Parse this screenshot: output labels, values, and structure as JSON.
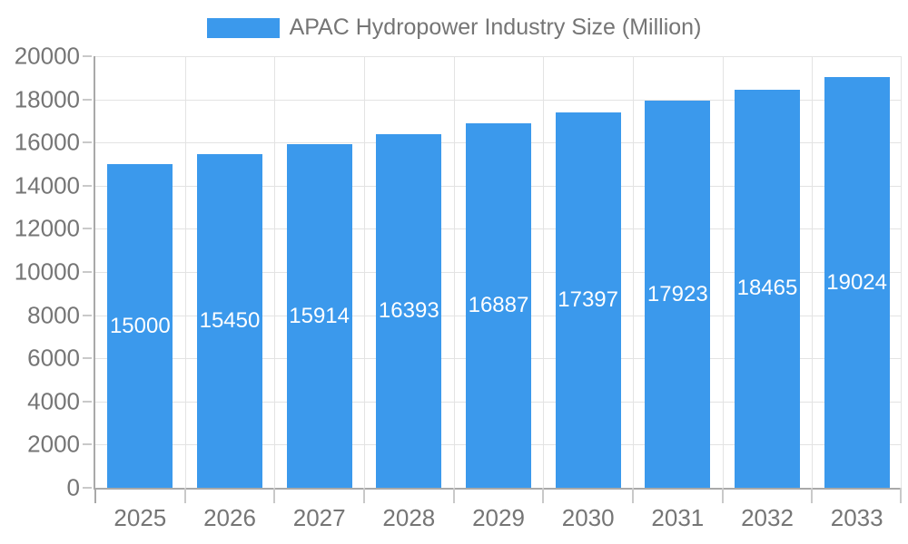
{
  "chart_data": {
    "type": "bar",
    "title": "APAC Hydropower Industry Size (Million)",
    "categories": [
      "2025",
      "2026",
      "2027",
      "2028",
      "2029",
      "2030",
      "2031",
      "2032",
      "2033"
    ],
    "values": [
      15000,
      15450,
      15914,
      16393,
      16887,
      17397,
      17923,
      18465,
      19024
    ],
    "xlabel": "",
    "ylabel": "",
    "ylim": [
      0,
      20000
    ],
    "ytick_step": 2000,
    "ytick_labels": [
      "0",
      "2000",
      "4000",
      "6000",
      "8000",
      "10000",
      "12000",
      "14000",
      "16000",
      "18000",
      "20000"
    ],
    "grid": true,
    "legend_position": "top-center",
    "value_labels_position": "inside-center",
    "colors": {
      "bar": "#3B99EC",
      "axis_line": "#A9A9A9",
      "gridline": "#E3E3E3",
      "tick_mark": "#C9C9C9",
      "tick_text": "#757575",
      "value_label_text": "#FFFFFF",
      "background": "#FFFFFF"
    }
  }
}
